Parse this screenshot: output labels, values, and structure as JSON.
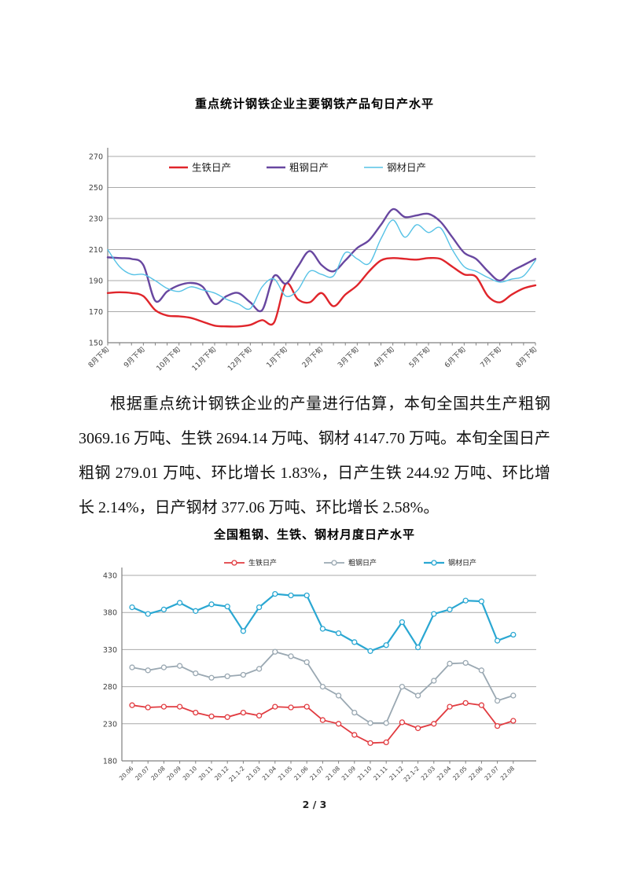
{
  "page": {
    "background": "#ffffff",
    "number_label": "2 / 3"
  },
  "colors": {
    "grid": "#a9a9a9",
    "axis": "#808080",
    "tick_text": "#404040",
    "title_text": "#000000"
  },
  "section1": {
    "title": "重点统计钢铁企业主要钢铁产品旬日产水平"
  },
  "body_paragraph": "根据重点统计钢铁企业的产量进行估算，本旬全国共生产粗钢 3069.16 万吨、生铁 2694.14 万吨、钢材 4147.70 万吨。本旬全国日产粗钢 279.01 万吨、环比增长 1.83%，日产生铁 244.92 万吨、环比增长 2.14%，日产钢材 377.06 万吨、环比增长 2.58%。",
  "section2": {
    "title": "全国粗钢、生铁、钢材月度日产水平"
  },
  "chart_data": [
    {
      "type": "line",
      "title": "重点统计钢铁企业主要钢铁产品旬日产水平",
      "smooth": true,
      "markers": false,
      "grid": true,
      "legend_position": "top-center-inside",
      "ylim": [
        150,
        270
      ],
      "ytick_step": 20,
      "n_points": 37,
      "xtick_label_interval": 3,
      "xtick_labels": [
        "8月下旬",
        "9月下旬",
        "10月下旬",
        "11月下旬",
        "12月下旬",
        "1月下旬",
        "2月下旬",
        "3月下旬",
        "4月下旬",
        "5月下旬",
        "6月下旬",
        "7月下旬",
        "8月下旬"
      ],
      "series": [
        {
          "name": "生铁日产",
          "color": "#e0252b",
          "values": [
            182,
            182.5,
            182,
            180,
            171,
            167.5,
            167,
            166,
            163.5,
            161,
            160.5,
            160.5,
            161.5,
            164.5,
            163,
            188,
            178,
            176,
            182,
            173.5,
            181,
            187,
            196,
            203,
            204.5,
            204,
            203.5,
            204.5,
            204,
            199,
            194,
            192.5,
            180,
            176,
            181,
            185,
            187
          ]
        },
        {
          "name": "粗钢日产",
          "color": "#6847a0",
          "values": [
            205,
            204.5,
            204,
            200,
            177,
            183,
            187,
            188.5,
            186,
            175,
            180,
            182,
            176,
            171,
            193,
            188,
            199,
            209,
            200,
            196,
            203,
            211,
            216,
            226,
            236,
            231,
            232,
            233,
            228,
            218,
            208,
            204,
            196,
            190,
            196,
            200,
            204
          ]
        },
        {
          "name": "钢材日产",
          "color": "#56c2e6",
          "values": [
            210,
            199,
            194,
            194,
            190,
            185,
            183,
            186,
            184,
            182,
            178,
            175,
            172,
            186,
            191,
            180,
            184,
            196,
            194,
            193,
            208,
            204,
            201,
            217,
            229,
            218,
            226,
            221,
            224,
            210,
            199,
            196,
            192,
            189,
            191,
            193,
            203
          ]
        }
      ]
    },
    {
      "type": "line",
      "title": "全国粗钢、生铁、钢材月度日产水平",
      "smooth": false,
      "markers": true,
      "grid": true,
      "legend_position": "top-center",
      "ylim": [
        180,
        430
      ],
      "ytick_step": 50,
      "categories": [
        "20.06",
        "20.07",
        "20.08",
        "20.09",
        "20.10",
        "20.11",
        "20.12",
        "21.1-2",
        "21.03",
        "21.04",
        "21.05",
        "21.06",
        "21.07",
        "21.08",
        "21.09",
        "21.10",
        "21.11",
        "21.12",
        "22.1-2",
        "22.03",
        "22.04",
        "22.05",
        "22.06",
        "22.07",
        "22.08"
      ],
      "series": [
        {
          "name": "生铁日产",
          "color": "#e13b40",
          "values": [
            255,
            252,
            253,
            253,
            245,
            240,
            239,
            245,
            241,
            253,
            252,
            253,
            235,
            230,
            215,
            204,
            205,
            232,
            224,
            230,
            253,
            258,
            255,
            227,
            234
          ]
        },
        {
          "name": "粗钢日产",
          "color": "#9aa8b2",
          "values": [
            306,
            302,
            306,
            308,
            298,
            292,
            294,
            296,
            304,
            327,
            321,
            313,
            280,
            268,
            245,
            231,
            231,
            280,
            268,
            288,
            311,
            312,
            302,
            261,
            268
          ]
        },
        {
          "name": "钢材日产",
          "color": "#2aa7d2",
          "values": [
            387,
            378,
            384,
            393,
            382,
            391,
            388,
            355,
            387,
            405,
            403,
            403,
            358,
            352,
            340,
            328,
            336,
            367,
            333,
            378,
            384,
            396,
            395,
            342,
            350
          ]
        }
      ]
    }
  ]
}
